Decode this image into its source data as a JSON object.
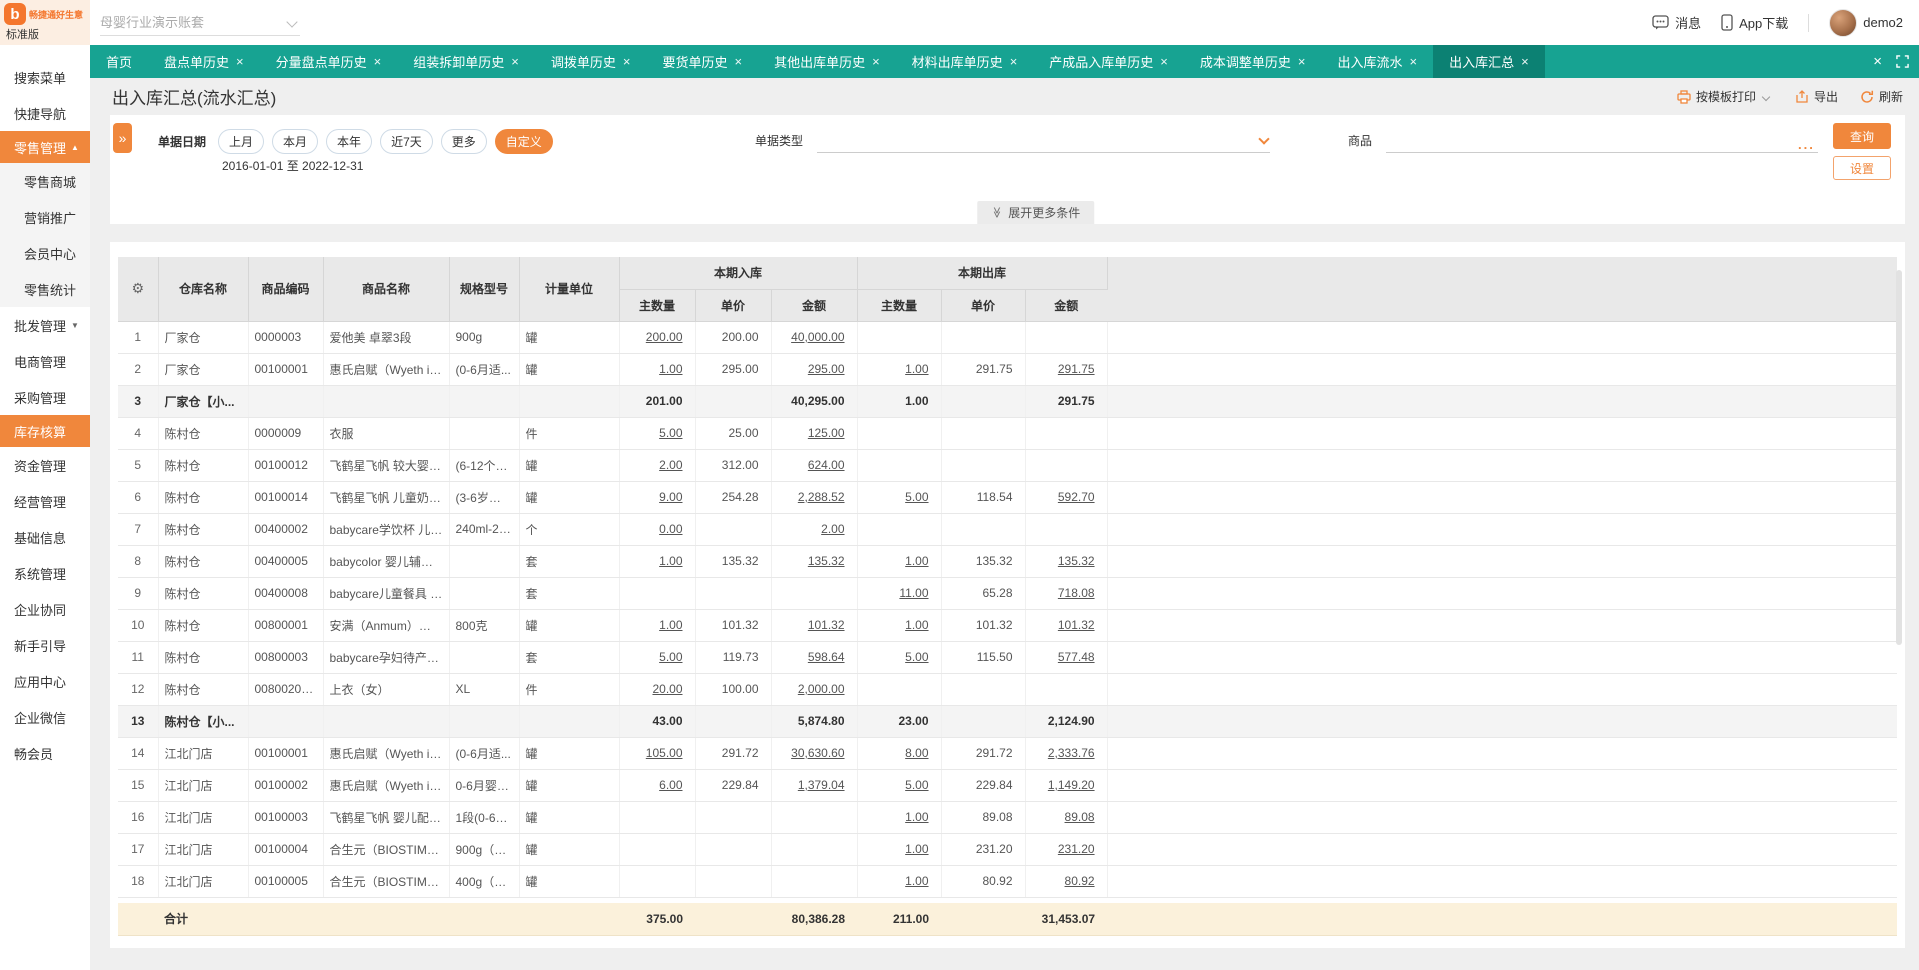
{
  "header": {
    "brand": "畅捷通好生意",
    "edition": "标准版",
    "account": "母婴行业演示账套",
    "messages": "消息",
    "app_download": "App下载",
    "username": "demo2"
  },
  "tabs": [
    {
      "label": "首页",
      "closable": false,
      "active": false
    },
    {
      "label": "盘点单历史",
      "closable": true,
      "active": false
    },
    {
      "label": "分量盘点单历史",
      "closable": true,
      "active": false
    },
    {
      "label": "组装拆卸单历史",
      "closable": true,
      "active": false
    },
    {
      "label": "调拨单历史",
      "closable": true,
      "active": false
    },
    {
      "label": "要货单历史",
      "closable": true,
      "active": false
    },
    {
      "label": "其他出库单历史",
      "closable": true,
      "active": false
    },
    {
      "label": "材料出库单历史",
      "closable": true,
      "active": false
    },
    {
      "label": "产成品入库单历史",
      "closable": true,
      "active": false
    },
    {
      "label": "成本调整单历史",
      "closable": true,
      "active": false
    },
    {
      "label": "出入库流水",
      "closable": true,
      "active": false
    },
    {
      "label": "出入库汇总",
      "closable": true,
      "active": true
    }
  ],
  "sidebar": {
    "items": [
      {
        "label": "搜索菜单"
      },
      {
        "label": "快捷导航"
      },
      {
        "label": "零售管理",
        "active": true,
        "state": "expanded",
        "submenu": [
          "零售商城",
          "营销推广",
          "会员中心",
          "零售统计"
        ]
      },
      {
        "label": "批发管理",
        "state": "collapsed"
      },
      {
        "label": "电商管理"
      },
      {
        "label": "采购管理"
      },
      {
        "label": "库存核算",
        "active": true
      },
      {
        "label": "资金管理"
      },
      {
        "label": "经营管理"
      },
      {
        "label": "基础信息"
      },
      {
        "label": "系统管理"
      },
      {
        "label": "企业协同"
      },
      {
        "label": "新手引导"
      },
      {
        "label": "应用中心"
      },
      {
        "label": "企业微信"
      },
      {
        "label": "畅会员"
      }
    ]
  },
  "page": {
    "title": "出入库汇总(流水汇总)",
    "toolbar": {
      "print": "按模板打印",
      "export": "导出",
      "refresh": "刷新"
    }
  },
  "filters": {
    "date_label": "单据日期",
    "date_pills": [
      "上月",
      "本月",
      "本年",
      "近7天",
      "更多"
    ],
    "custom_pill": "自定义",
    "date_range": "2016-01-01 至 2022-12-31",
    "doc_type_label": "单据类型",
    "product_label": "商品",
    "more_dots": "...",
    "search_button": "查询",
    "settings_button": "设置",
    "expand_more": "展开更多条件"
  },
  "table": {
    "headers": {
      "warehouse": "仓库名称",
      "code": "商品编码",
      "name": "商品名称",
      "spec": "规格型号",
      "unit": "计量单位",
      "in_group": "本期入库",
      "out_group": "本期出库",
      "qty": "主数量",
      "price": "单价",
      "amount": "金额"
    },
    "rows": [
      [
        "1",
        "厂家仓",
        "0000003",
        "爱他美 卓翠3段",
        "900g",
        "罐",
        "200.00",
        "200.00",
        "40,000.00",
        "",
        "",
        "",
        "data"
      ],
      [
        "2",
        "厂家仓",
        "00100001",
        "惠氏启赋（Wyeth illu...",
        "(0-6月适...",
        "罐",
        "1.00",
        "295.00",
        "295.00",
        "1.00",
        "291.75",
        "291.75",
        "data"
      ],
      [
        "3",
        "厂家仓【小...",
        "",
        "",
        "",
        "",
        "201.00",
        "",
        "40,295.00",
        "1.00",
        "",
        "291.75",
        "subtotal"
      ],
      [
        "4",
        "陈村仓",
        "0000009",
        "衣服",
        "",
        "件",
        "5.00",
        "25.00",
        "125.00",
        "",
        "",
        "",
        "data"
      ],
      [
        "5",
        "陈村仓",
        "00100012",
        "飞鹤星飞帆 较大婴儿配...",
        "(6-12个月...",
        "罐",
        "2.00",
        "312.00",
        "624.00",
        "",
        "",
        "",
        "data"
      ],
      [
        "6",
        "陈村仓",
        "00100014",
        "飞鹤星飞帆 儿童奶粉 4...",
        "(3-6岁适用)...",
        "罐",
        "9.00",
        "254.28",
        "2,288.52",
        "5.00",
        "118.54",
        "592.70",
        "data"
      ],
      [
        "7",
        "陈村仓",
        "00400002",
        "babycare学饮杯 儿童...",
        "240ml-2716",
        "个",
        "0.00",
        "",
        "2.00",
        "",
        "",
        "",
        "data"
      ],
      [
        "8",
        "陈村仓",
        "00400005",
        "babycolor 婴儿辅食机 ...",
        "",
        "套",
        "1.00",
        "135.32",
        "135.32",
        "1.00",
        "135.32",
        "135.32",
        "data"
      ],
      [
        "9",
        "陈村仓",
        "00400008",
        "babycare儿童餐具 婴...",
        "",
        "套",
        "",
        "",
        "",
        "11.00",
        "65.28",
        "718.08",
        "data"
      ],
      [
        "10",
        "陈村仓",
        "00800001",
        "安满（Anmum）智孕...",
        "800克",
        "罐",
        "1.00",
        "101.32",
        "101.32",
        "1.00",
        "101.32",
        "101.32",
        "data"
      ],
      [
        "11",
        "陈村仓",
        "00800003",
        "babycare孕妇待产包 ...",
        "",
        "套",
        "5.00",
        "119.73",
        "598.64",
        "5.00",
        "115.50",
        "577.48",
        "data"
      ],
      [
        "12",
        "陈村仓",
        "008002000...",
        "上衣（女）",
        "XL",
        "件",
        "20.00",
        "100.00",
        "2,000.00",
        "",
        "",
        "",
        "data"
      ],
      [
        "13",
        "陈村仓【小...",
        "",
        "",
        "",
        "",
        "43.00",
        "",
        "5,874.80",
        "23.00",
        "",
        "2,124.90",
        "subtotal"
      ],
      [
        "14",
        "江北门店",
        "00100001",
        "惠氏启赋（Wyeth illu...",
        "(0-6月适...",
        "罐",
        "105.00",
        "291.72",
        "30,630.60",
        "8.00",
        "291.72",
        "2,333.76",
        "data"
      ],
      [
        "15",
        "江北门店",
        "00100002",
        "惠氏启赋（Wyeth illu...",
        "0-6月婴儿...",
        "罐",
        "6.00",
        "229.84",
        "1,379.04",
        "5.00",
        "229.84",
        "1,149.20",
        "data"
      ],
      [
        "16",
        "江北门店",
        "00100003",
        "飞鹤星飞帆 婴儿配方奶...",
        "1段(0-6个...",
        "罐",
        "",
        "",
        "",
        "1.00",
        "89.08",
        "89.08",
        "data"
      ],
      [
        "17",
        "江北门店",
        "00100004",
        "合生元（BIOSTIME）...",
        "900g（0-6...",
        "罐",
        "",
        "",
        "",
        "1.00",
        "231.20",
        "231.20",
        "data"
      ],
      [
        "18",
        "江北门店",
        "00100005",
        "合生元（BIOSTIME）...",
        "400g（0-6...",
        "罐",
        "",
        "",
        "",
        "1.00",
        "80.92",
        "80.92",
        "data"
      ]
    ],
    "total": {
      "label": "合计",
      "in_qty": "375.00",
      "in_amount": "80,386.28",
      "out_qty": "211.00",
      "out_amount": "31,453.07"
    }
  },
  "colors": {
    "teal": "#17A392",
    "teal_active": "#0C8173",
    "orange": "#F0873C",
    "total_row_bg": "#FBF1DB"
  }
}
